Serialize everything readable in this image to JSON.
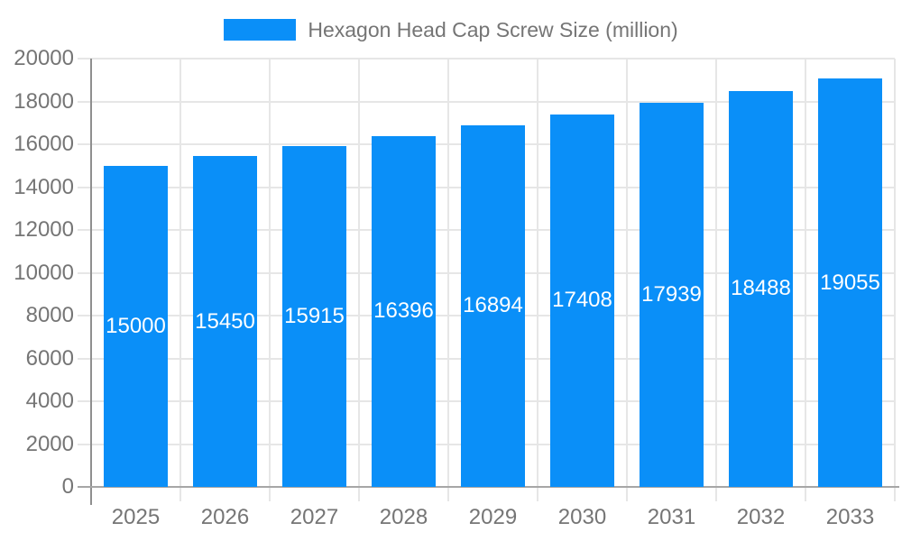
{
  "legend": {
    "label": "Hexagon Head Cap Screw Size (million)"
  },
  "colors": {
    "bar": "#0A8FF8",
    "bar_label": "#FFFFFF",
    "grid": "#E6E6E6",
    "y_axis_line": "#8F8F8F",
    "x_axis_line": "#A6A6A6",
    "axis_text": "#757575",
    "legend_text": "#757575",
    "background": "#FFFFFF"
  },
  "chart_data": {
    "type": "bar",
    "title": "Hexagon Head Cap Screw Size (million)",
    "xlabel": "",
    "ylabel": "",
    "categories": [
      "2025",
      "2026",
      "2027",
      "2028",
      "2029",
      "2030",
      "2031",
      "2032",
      "2033"
    ],
    "series": [
      {
        "name": "Hexagon Head Cap Screw Size (million)",
        "values": [
          15000,
          15450,
          15915,
          16396,
          16894,
          17408,
          17939,
          18488,
          19055
        ]
      }
    ],
    "ylim": [
      0,
      20000
    ],
    "y_ticks": [
      0,
      2000,
      4000,
      6000,
      8000,
      10000,
      12000,
      14000,
      16000,
      18000,
      20000
    ],
    "grid": true,
    "legend_position": "top-center",
    "bar_label_position": "inside-middle"
  }
}
